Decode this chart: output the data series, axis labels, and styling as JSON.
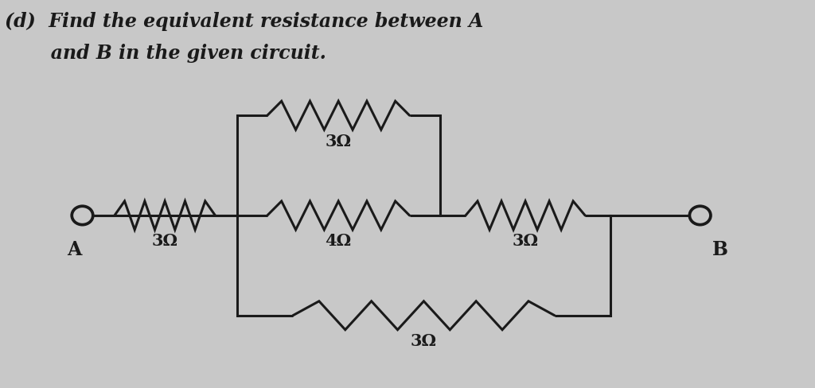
{
  "title_line1": "(d)  Find the equivalent resistance between A",
  "title_line2": "       and B in the given circuit.",
  "bg_color": "#c8c8c8",
  "text_color": "#1a1a1a",
  "line_color": "#1a1a1a",
  "line_width": 2.2,
  "font_size_title": 17,
  "font_size_label": 15,
  "node_A": "A",
  "node_B": "B",
  "xA": 1.0,
  "xL": 2.9,
  "xM": 5.4,
  "xR": 7.5,
  "xB": 8.6,
  "yMid": 2.2,
  "yTop": 3.6,
  "yBot": 0.8,
  "resistor_amp": 0.2,
  "resistor_n_bumps": 5,
  "labels": [
    "3Ω",
    "3Ω",
    "4Ω",
    "3Ω",
    "3Ω"
  ]
}
